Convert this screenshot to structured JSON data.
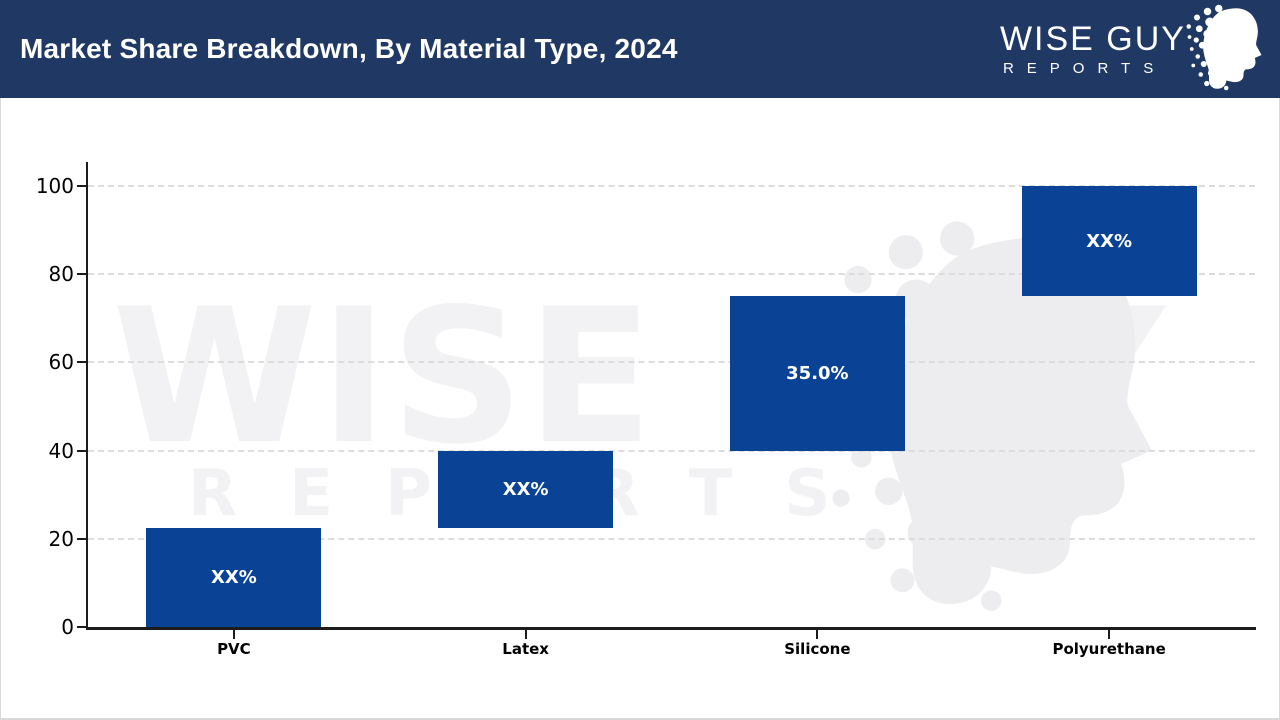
{
  "header": {
    "title": "Market Share Breakdown, By Material Type, 2024",
    "background_color": "#1f3864",
    "brand": {
      "line1": "WISE GUY",
      "line2": "REPORTS"
    }
  },
  "watermark": {
    "line1": "WISE GUY",
    "line2": "REPORTS"
  },
  "chart_data": {
    "type": "bar",
    "variant": "waterfall",
    "title": "Market Share Breakdown, By Material Type, 2024",
    "categories": [
      "PVC",
      "Latex",
      "Silicone",
      "Polyurethane"
    ],
    "segments": [
      {
        "category": "PVC",
        "start": 0,
        "end": 22.5,
        "label": "XX%"
      },
      {
        "category": "Latex",
        "start": 22.5,
        "end": 40,
        "label": "XX%"
      },
      {
        "category": "Silicone",
        "start": 40,
        "end": 75,
        "label": "35.0%"
      },
      {
        "category": "Polyurethane",
        "start": 75,
        "end": 100,
        "label": "XX%"
      }
    ],
    "ylim": [
      0,
      100
    ],
    "yticks": [
      0,
      20,
      40,
      60,
      80,
      100
    ],
    "xlabel": "",
    "ylabel": "",
    "grid": "horizontal-dashed",
    "legend": "none",
    "bar_color": "#0a4296",
    "bar_label_color": "#ffffff",
    "grid_color": "#dcdcdc",
    "axis_color": "#1c1c1c"
  }
}
